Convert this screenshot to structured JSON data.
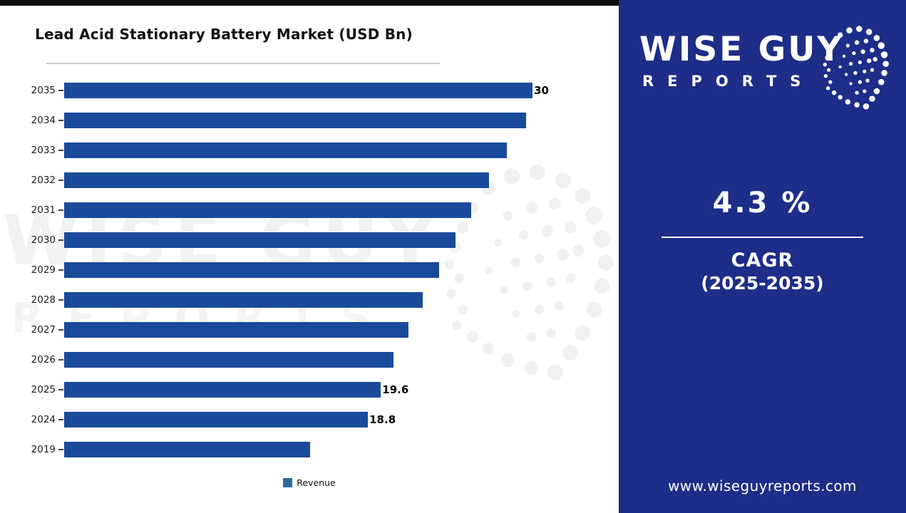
{
  "title": "Lead Acid Stationary Battery Market (USD Bn)",
  "legend": {
    "label": "Revenue"
  },
  "colors": {
    "bar": "#1a4b9b",
    "legend_swatch": "#2a6d9f",
    "sidebar_bg": "#1d2d88",
    "sidebar_text": "#ffffff"
  },
  "chart_data": {
    "type": "bar",
    "orientation": "horizontal",
    "title": "Lead Acid Stationary Battery Market (USD Bn)",
    "xlabel": "",
    "ylabel": "",
    "xlim": [
      0,
      30
    ],
    "grid": false,
    "legend_position": "bottom",
    "series_name": "Revenue",
    "categories": [
      "2035",
      "2034",
      "2033",
      "2032",
      "2031",
      "2030",
      "2029",
      "2028",
      "2027",
      "2026",
      "2025",
      "2024",
      "2019"
    ],
    "values": [
      30,
      28.6,
      27.4,
      26.3,
      25.2,
      24.2,
      23.2,
      22.2,
      21.3,
      20.4,
      19.6,
      18.8,
      15.2
    ],
    "bars": [
      {
        "year": "2035",
        "value": 30,
        "label": "30"
      },
      {
        "year": "2034",
        "value": 28.6,
        "label": ""
      },
      {
        "year": "2033",
        "value": 27.4,
        "label": ""
      },
      {
        "year": "2032",
        "value": 26.3,
        "label": ""
      },
      {
        "year": "2031",
        "value": 25.2,
        "label": ""
      },
      {
        "year": "2030",
        "value": 24.2,
        "label": ""
      },
      {
        "year": "2029",
        "value": 23.2,
        "label": ""
      },
      {
        "year": "2028",
        "value": 22.2,
        "label": ""
      },
      {
        "year": "2027",
        "value": 21.3,
        "label": ""
      },
      {
        "year": "2026",
        "value": 20.4,
        "label": ""
      },
      {
        "year": "2025",
        "value": 19.6,
        "label": "19.6"
      },
      {
        "year": "2024",
        "value": 18.8,
        "label": "18.8"
      },
      {
        "year": "2019",
        "value": 15.2,
        "label": ""
      }
    ]
  },
  "sidebar": {
    "logo_line1": "WISE GUY",
    "logo_line2": "REPORTS",
    "cagr_value": "4.3 %",
    "cagr_label": "CAGR",
    "cagr_period": "(2025-2035)",
    "website": "www.wiseguyreports.com"
  },
  "watermark": {
    "line1": "WISE GUY",
    "line2": "REPORTS"
  }
}
